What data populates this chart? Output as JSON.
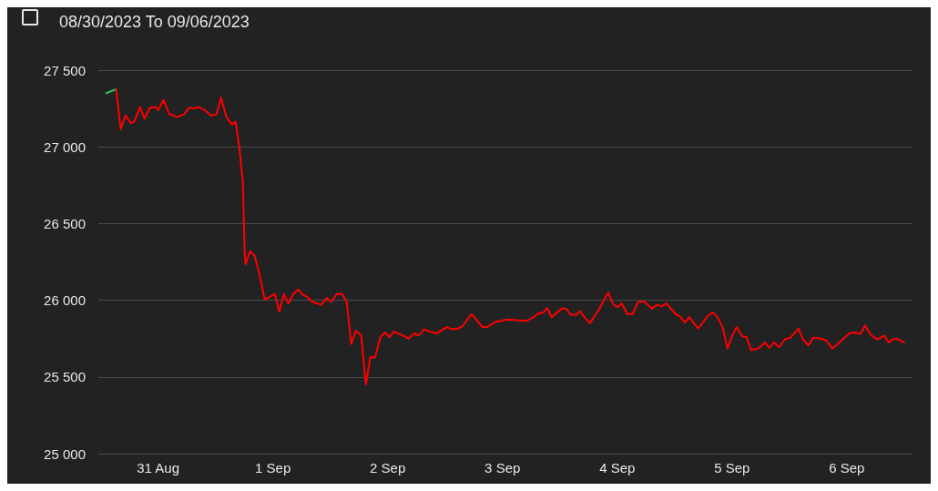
{
  "chart_data": {
    "type": "line",
    "title": "08/30/2023 To 09/06/2023",
    "xlim": [
      "2023-08-30T11:30",
      "2023-09-06T13:45"
    ],
    "xticks": [
      {
        "value": "2023-08-31",
        "label": "31 Aug"
      },
      {
        "value": "2023-09-01",
        "label": "1 Sep"
      },
      {
        "value": "2023-09-02",
        "label": "2 Sep"
      },
      {
        "value": "2023-09-03",
        "label": "3 Sep"
      },
      {
        "value": "2023-09-04",
        "label": "4 Sep"
      },
      {
        "value": "2023-09-05",
        "label": "5 Sep"
      },
      {
        "value": "2023-09-06",
        "label": "6 Sep"
      }
    ],
    "ylim": [
      25000,
      27500
    ],
    "yticks": [
      {
        "value": 25000,
        "label": "25 000"
      },
      {
        "value": 25500,
        "label": "25 500"
      },
      {
        "value": 26000,
        "label": "26 000"
      },
      {
        "value": 26500,
        "label": "26 500"
      },
      {
        "value": 27000,
        "label": "27 000"
      },
      {
        "value": 27500,
        "label": "27 500"
      }
    ],
    "grid": "y",
    "marker": "none",
    "line_style": "solid",
    "series": [
      {
        "color": "#22c55e",
        "x": [
          "2023-08-30T13:08",
          "2023-08-30T15:14"
        ],
        "values": [
          27350,
          27375
        ]
      },
      {
        "color": "#ff0000",
        "x": [
          "2023-08-30T15:14",
          "2023-08-30T16:11",
          "2023-08-30T17:08",
          "2023-08-30T18:17",
          "2023-08-30T19:03",
          "2023-08-30T20:11",
          "2023-08-30T21:09",
          "2023-08-30T22:17",
          "2023-08-30T23:26",
          "2023-08-31T00:00",
          "2023-08-31T01:09",
          "2023-08-31T02:17",
          "2023-08-31T04:00",
          "2023-08-31T05:20",
          "2023-08-31T06:29",
          "2023-08-31T07:26",
          "2023-08-31T08:23",
          "2023-08-31T09:43",
          "2023-08-31T11:03",
          "2023-08-31T12:11",
          "2023-08-31T13:09",
          "2023-08-31T14:17",
          "2023-08-31T15:26",
          "2023-08-31T16:11",
          "2023-08-31T16:57",
          "2023-08-31T17:43",
          "2023-08-31T18:06",
          "2023-08-31T18:17",
          "2023-08-31T19:14",
          "2023-08-31T20:11",
          "2023-08-31T21:09",
          "2023-08-31T22:17",
          "2023-09-01T00:23",
          "2023-09-01T01:20",
          "2023-09-01T02:17",
          "2023-09-01T03:14",
          "2023-09-01T04:23",
          "2023-09-01T05:20",
          "2023-09-01T06:17",
          "2023-09-01T07:14",
          "2023-09-01T08:11",
          "2023-09-01T10:06",
          "2023-09-01T11:14",
          "2023-09-01T12:11",
          "2023-09-01T13:20",
          "2023-09-01T14:29",
          "2023-09-01T15:26",
          "2023-09-01T16:23",
          "2023-09-01T17:20",
          "2023-09-01T18:29",
          "2023-09-01T19:26",
          "2023-09-01T20:23",
          "2023-09-01T21:20",
          "2023-09-01T22:29",
          "2023-09-01T23:26",
          "2023-09-02T00:23",
          "2023-09-02T01:20",
          "2023-09-02T03:14",
          "2023-09-02T04:23",
          "2023-09-02T05:31",
          "2023-09-02T06:29",
          "2023-09-02T07:37",
          "2023-09-02T08:46",
          "2023-09-02T10:17",
          "2023-09-02T12:23",
          "2023-09-02T13:31",
          "2023-09-02T14:40",
          "2023-09-02T15:37",
          "2023-09-02T17:31",
          "2023-09-02T19:49",
          "2023-09-02T20:46",
          "2023-09-02T22:40",
          "2023-09-03T01:09",
          "2023-09-03T04:57",
          "2023-09-03T06:17",
          "2023-09-03T07:37",
          "2023-09-03T08:34",
          "2023-09-03T09:20",
          "2023-09-03T10:17",
          "2023-09-03T12:23",
          "2023-09-03T13:20",
          "2023-09-03T14:17",
          "2023-09-03T15:26",
          "2023-09-03T16:11",
          "2023-09-03T17:09",
          "2023-09-03T18:17",
          "2023-09-03T20:11",
          "2023-09-03T22:06",
          "2023-09-03T23:14",
          "2023-09-04T00:11",
          "2023-09-04T00:57",
          "2023-09-04T02:06",
          "2023-09-04T03:14",
          "2023-09-04T04:23",
          "2023-09-04T05:43",
          "2023-09-04T07:14",
          "2023-09-04T08:23",
          "2023-09-04T09:20",
          "2023-09-04T10:17",
          "2023-09-04T12:11",
          "2023-09-04T13:09",
          "2023-09-04T14:06",
          "2023-09-04T15:03",
          "2023-09-04T16:57",
          "2023-09-04T18:51",
          "2023-09-04T20:00",
          "2023-09-04T20:57",
          "2023-09-04T22:06",
          "2023-09-04T23:03",
          "2023-09-05T00:00",
          "2023-09-05T00:57",
          "2023-09-05T02:06",
          "2023-09-05T03:03",
          "2023-09-05T04:00",
          "2023-09-05T05:31",
          "2023-09-05T06:51",
          "2023-09-05T07:49",
          "2023-09-05T08:46",
          "2023-09-05T09:54",
          "2023-09-05T11:03",
          "2023-09-05T12:11",
          "2023-09-05T13:54",
          "2023-09-05T14:51",
          "2023-09-05T16:00",
          "2023-09-05T16:57",
          "2023-09-05T18:40",
          "2023-09-05T19:49",
          "2023-09-05T20:57",
          "2023-09-05T22:40",
          "2023-09-06T00:34",
          "2023-09-06T01:43",
          "2023-09-06T02:51",
          "2023-09-06T03:49",
          "2023-09-06T05:09",
          "2023-09-06T06:29",
          "2023-09-06T07:49",
          "2023-09-06T08:46",
          "2023-09-06T09:54",
          "2023-09-06T10:51",
          "2023-09-06T12:00"
        ],
        "values": [
          27375,
          27115,
          27205,
          27155,
          27165,
          27260,
          27185,
          27255,
          27260,
          27240,
          27305,
          27215,
          27195,
          27210,
          27255,
          27250,
          27260,
          27240,
          27205,
          27210,
          27320,
          27195,
          27145,
          27165,
          27005,
          26770,
          26310,
          26235,
          26320,
          26290,
          26175,
          26005,
          26040,
          25925,
          26040,
          25980,
          26045,
          26070,
          26035,
          26020,
          25990,
          25970,
          26015,
          25990,
          26040,
          26040,
          25990,
          25715,
          25800,
          25770,
          25450,
          25630,
          25625,
          25760,
          25790,
          25760,
          25795,
          25770,
          25750,
          25785,
          25770,
          25810,
          25795,
          25785,
          25825,
          25810,
          25815,
          25830,
          25910,
          25825,
          25825,
          25860,
          25875,
          25865,
          25885,
          25915,
          25920,
          25950,
          25890,
          25945,
          25945,
          25905,
          25905,
          25930,
          25890,
          25850,
          25940,
          26050,
          25970,
          25955,
          25980,
          25910,
          25910,
          25990,
          25990,
          25945,
          25970,
          25960,
          25980,
          25910,
          25895,
          25855,
          25890,
          25815,
          25895,
          25920,
          25890,
          25820,
          25685,
          25765,
          25825,
          25765,
          25760,
          25675,
          25685,
          25725,
          25690,
          25725,
          25695,
          25745,
          25755,
          25815,
          25745,
          25705,
          25755,
          25750,
          25735,
          25685,
          25730,
          25785,
          25790,
          25780,
          25835,
          25770,
          25745,
          25770,
          25725,
          25750,
          25745,
          25725
        ]
      }
    ]
  }
}
